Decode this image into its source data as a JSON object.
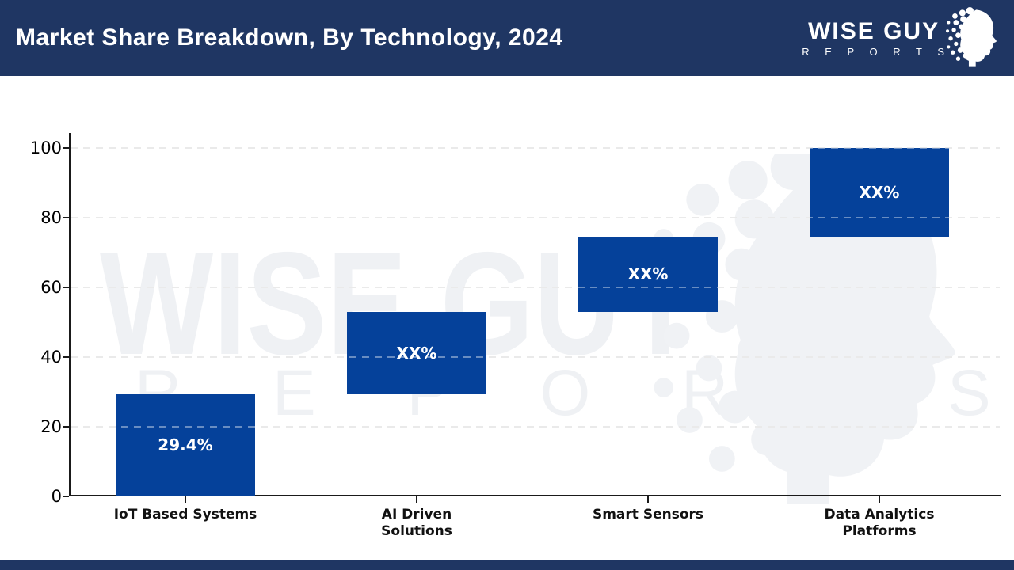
{
  "header": {
    "title": "Market Share Breakdown, By Technology, 2024",
    "logo": {
      "line1": "WISE GUY",
      "line2": "R E P O R T S"
    },
    "background_color": "#1f3663"
  },
  "watermark": {
    "line1": "WISE GUY",
    "line2": "R E P O R T S"
  },
  "chart_data": {
    "type": "bar",
    "subtype": "waterfall",
    "title": "Market Share Breakdown, By Technology, 2024",
    "categories": [
      "IoT Based Systems",
      "AI Driven\nSolutions",
      "Smart Sensors",
      "Data Analytics\nPlatforms"
    ],
    "series": [
      {
        "name": "Market Share %",
        "segments": [
          {
            "category": "IoT Based Systems",
            "start": 0,
            "end": 29.4,
            "label": "29.4%"
          },
          {
            "category": "AI Driven Solutions",
            "start": 29.4,
            "end": 53,
            "label": "XX%"
          },
          {
            "category": "Smart Sensors",
            "start": 53,
            "end": 74.5,
            "label": "XX%"
          },
          {
            "category": "Data Analytics Platforms",
            "start": 74.5,
            "end": 100,
            "label": "XX%"
          }
        ]
      }
    ],
    "ylim": [
      0,
      100
    ],
    "yticks": [
      0,
      20,
      40,
      60,
      80,
      100
    ],
    "xlabel": "",
    "ylabel": "",
    "grid": "dashed-horizontal",
    "legend": "none",
    "bar_color": "#05419a",
    "bar_label_color": "#ffffff"
  }
}
